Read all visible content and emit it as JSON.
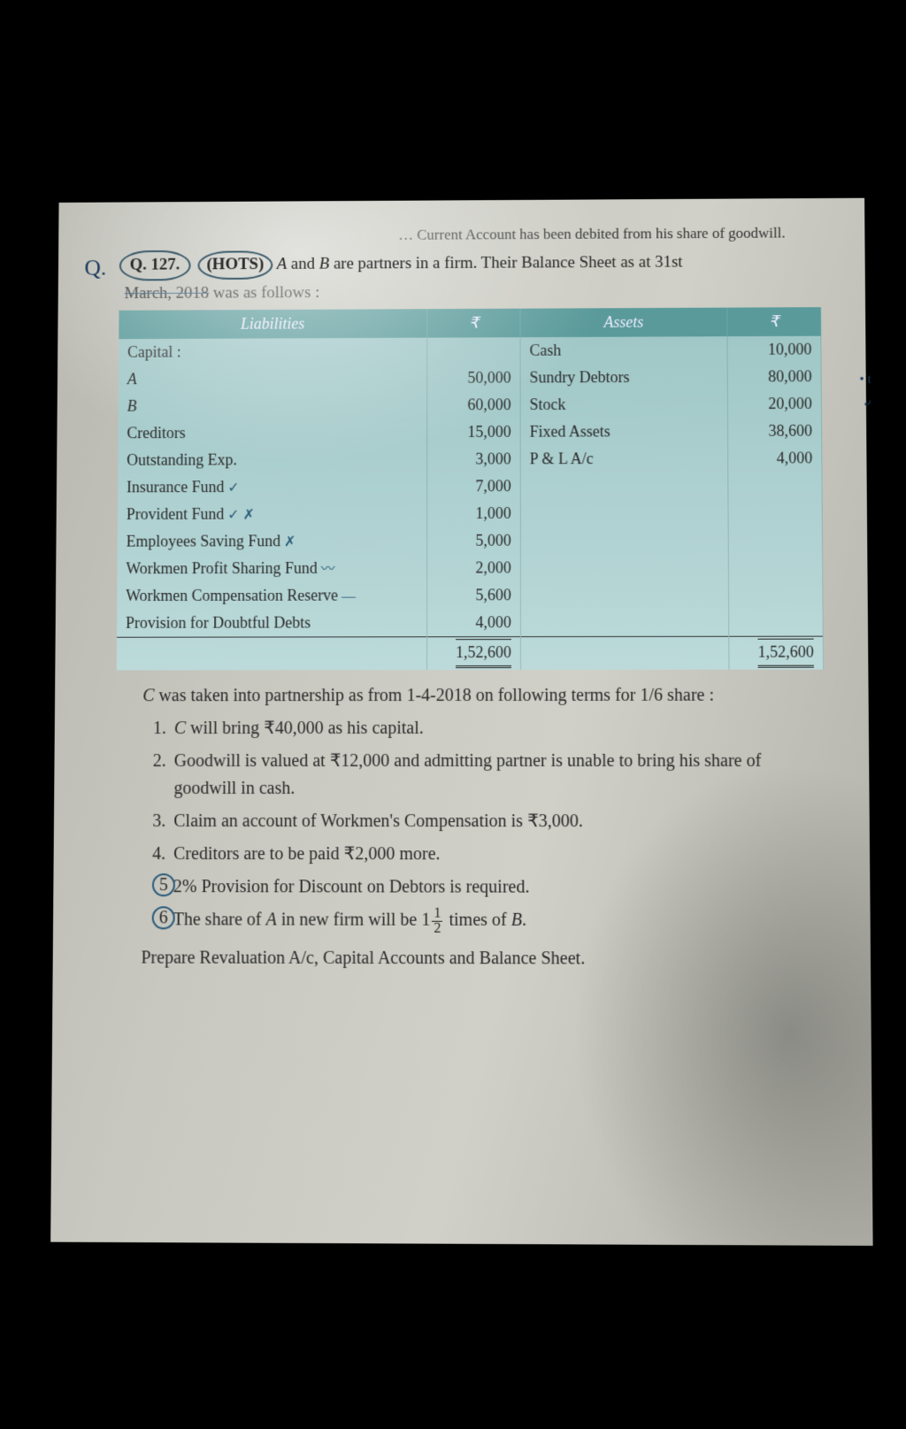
{
  "topline": "… Current Account has been debited from his share of goodwill.",
  "question": {
    "number": "Q. 127.",
    "tag": "(HOTS)",
    "text_a": "A",
    "text_and": " and ",
    "text_b": "B",
    "text_rest": " are partners in a firm. Their Balance Sheet as at 31st",
    "line2_a": "March, 2018",
    "line2_b": " was as follows :",
    "margin_mark": "Q."
  },
  "table": {
    "headers": {
      "liab": "Liabilities",
      "rs1": "₹",
      "assets": "Assets",
      "rs2": "₹"
    },
    "liab": [
      {
        "label": "Capital :",
        "amt": ""
      },
      {
        "label": "A",
        "amt": "50,000",
        "indent": true
      },
      {
        "label": "B",
        "amt": "60,000",
        "indent": true
      },
      {
        "label": "Creditors",
        "amt": "15,000"
      },
      {
        "label": "Outstanding Exp.",
        "amt": "3,000"
      },
      {
        "label": "Insurance Fund",
        "amt": "7,000",
        "tick": "✓"
      },
      {
        "label": "Provident Fund",
        "amt": "1,000",
        "tick": "✓ ✗"
      },
      {
        "label": "Employees Saving Fund",
        "amt": "5,000",
        "tick": "✗"
      },
      {
        "label": "Workmen Profit Sharing Fund",
        "amt": "2,000",
        "tick": "〰"
      },
      {
        "label": "Workmen Compensation Reserve",
        "amt": "5,600",
        "tick": "—"
      },
      {
        "label": "Provision for Doubtful Debts",
        "amt": "4,000"
      }
    ],
    "assets": [
      {
        "label": "Cash",
        "amt": "10,000"
      },
      {
        "label": "Sundry Debtors",
        "amt": "80,000",
        "note": "• t"
      },
      {
        "label": "Stock",
        "amt": "20,000",
        "note": "⤶"
      },
      {
        "label": "Fixed Assets",
        "amt": "38,600"
      },
      {
        "label": "P & L A/c",
        "amt": "4,000"
      }
    ],
    "total": "1,52,600"
  },
  "terms": {
    "lead_a": "C",
    "lead_b": " was taken into partnership as from 1-4-2018 on following terms for 1/6 share :",
    "items": [
      {
        "n": "1.",
        "html": "C will bring ₹40,000 as his capital.",
        "it_first": true
      },
      {
        "n": "2.",
        "html": "Goodwill is valued at ₹12,000 and admitting partner is unable to bring his share of goodwill in cash."
      },
      {
        "n": "3.",
        "html": "Claim an account of Workmen's Compensation is ₹3,000."
      },
      {
        "n": "4.",
        "html": "Creditors are to be paid ₹2,000 more."
      },
      {
        "n": "5.",
        "html": "2% Provision for Discount on Debtors is required.",
        "circ": true
      },
      {
        "n": "6.",
        "html_pre": "The share of ",
        "A": "A",
        "mid": " in new firm will be 1",
        "frac_n": "1",
        "frac_d": "2",
        "post": " times of ",
        "B": "B",
        "end": ".",
        "circ": true
      }
    ]
  },
  "prepare": "Prepare Revaluation A/c, Capital Accounts and Balance Sheet."
}
